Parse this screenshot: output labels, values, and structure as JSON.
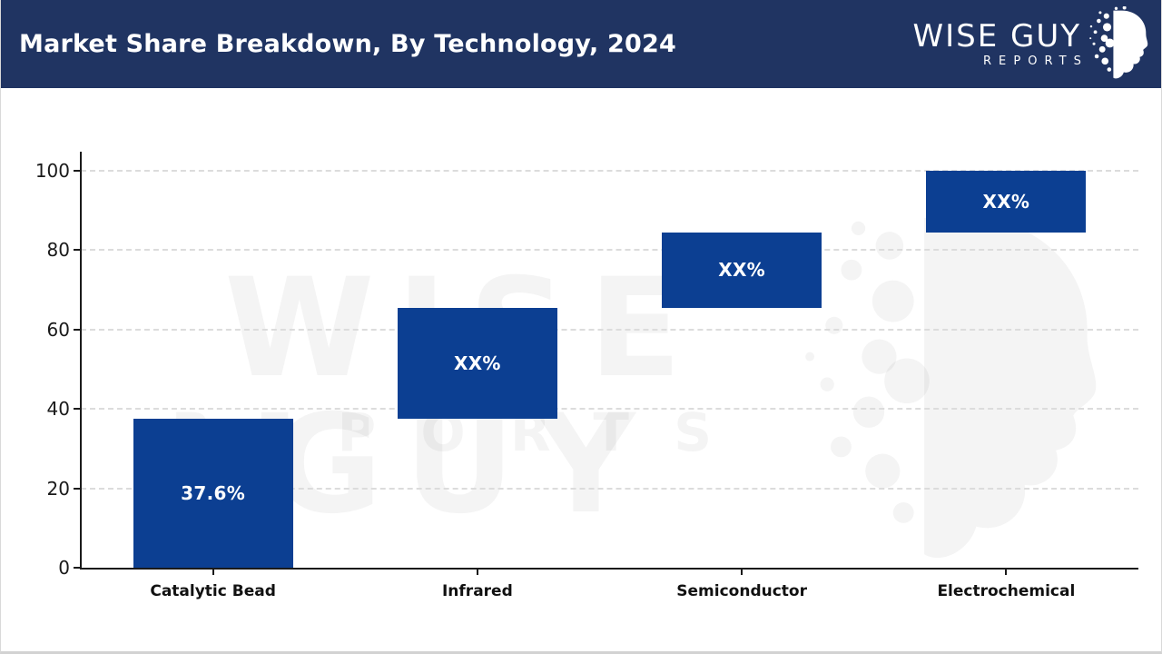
{
  "header": {
    "title": "Market Share Breakdown, By Technology, 2024",
    "logo": {
      "line1": "WISE GUY",
      "line2": "REPORTS"
    }
  },
  "watermark": {
    "line1": "WISE GUY",
    "line2": "REPORTS"
  },
  "colors": {
    "header_bg": "#203462",
    "bar": "#0c3f92",
    "grid": "#dcdcdc",
    "axis": "#1a1a1a",
    "bar_label": "#ffffff"
  },
  "chart_data": {
    "type": "bar",
    "subtype": "waterfall-floating-bars",
    "title": "Market Share Breakdown, By Technology, 2024",
    "categories": [
      "Catalytic Bead",
      "Infrared",
      "Semiconductor",
      "Electrochemical"
    ],
    "segments": [
      {
        "category": "Catalytic Bead",
        "start": 0,
        "end": 37.6,
        "label": "37.6%"
      },
      {
        "category": "Infrared",
        "start": 37.6,
        "end": 65.5,
        "label": "XX%"
      },
      {
        "category": "Semiconductor",
        "start": 65.5,
        "end": 84.5,
        "label": "XX%"
      },
      {
        "category": "Electrochemical",
        "start": 84.5,
        "end": 100,
        "label": "XX%"
      }
    ],
    "ylim": [
      0,
      100
    ],
    "yticks": [
      0,
      20,
      40,
      60,
      80,
      100
    ],
    "xlabel": "",
    "ylabel": "",
    "grid": "horizontal-dashed",
    "legend": "none",
    "bar_color": "#0c3f92"
  }
}
